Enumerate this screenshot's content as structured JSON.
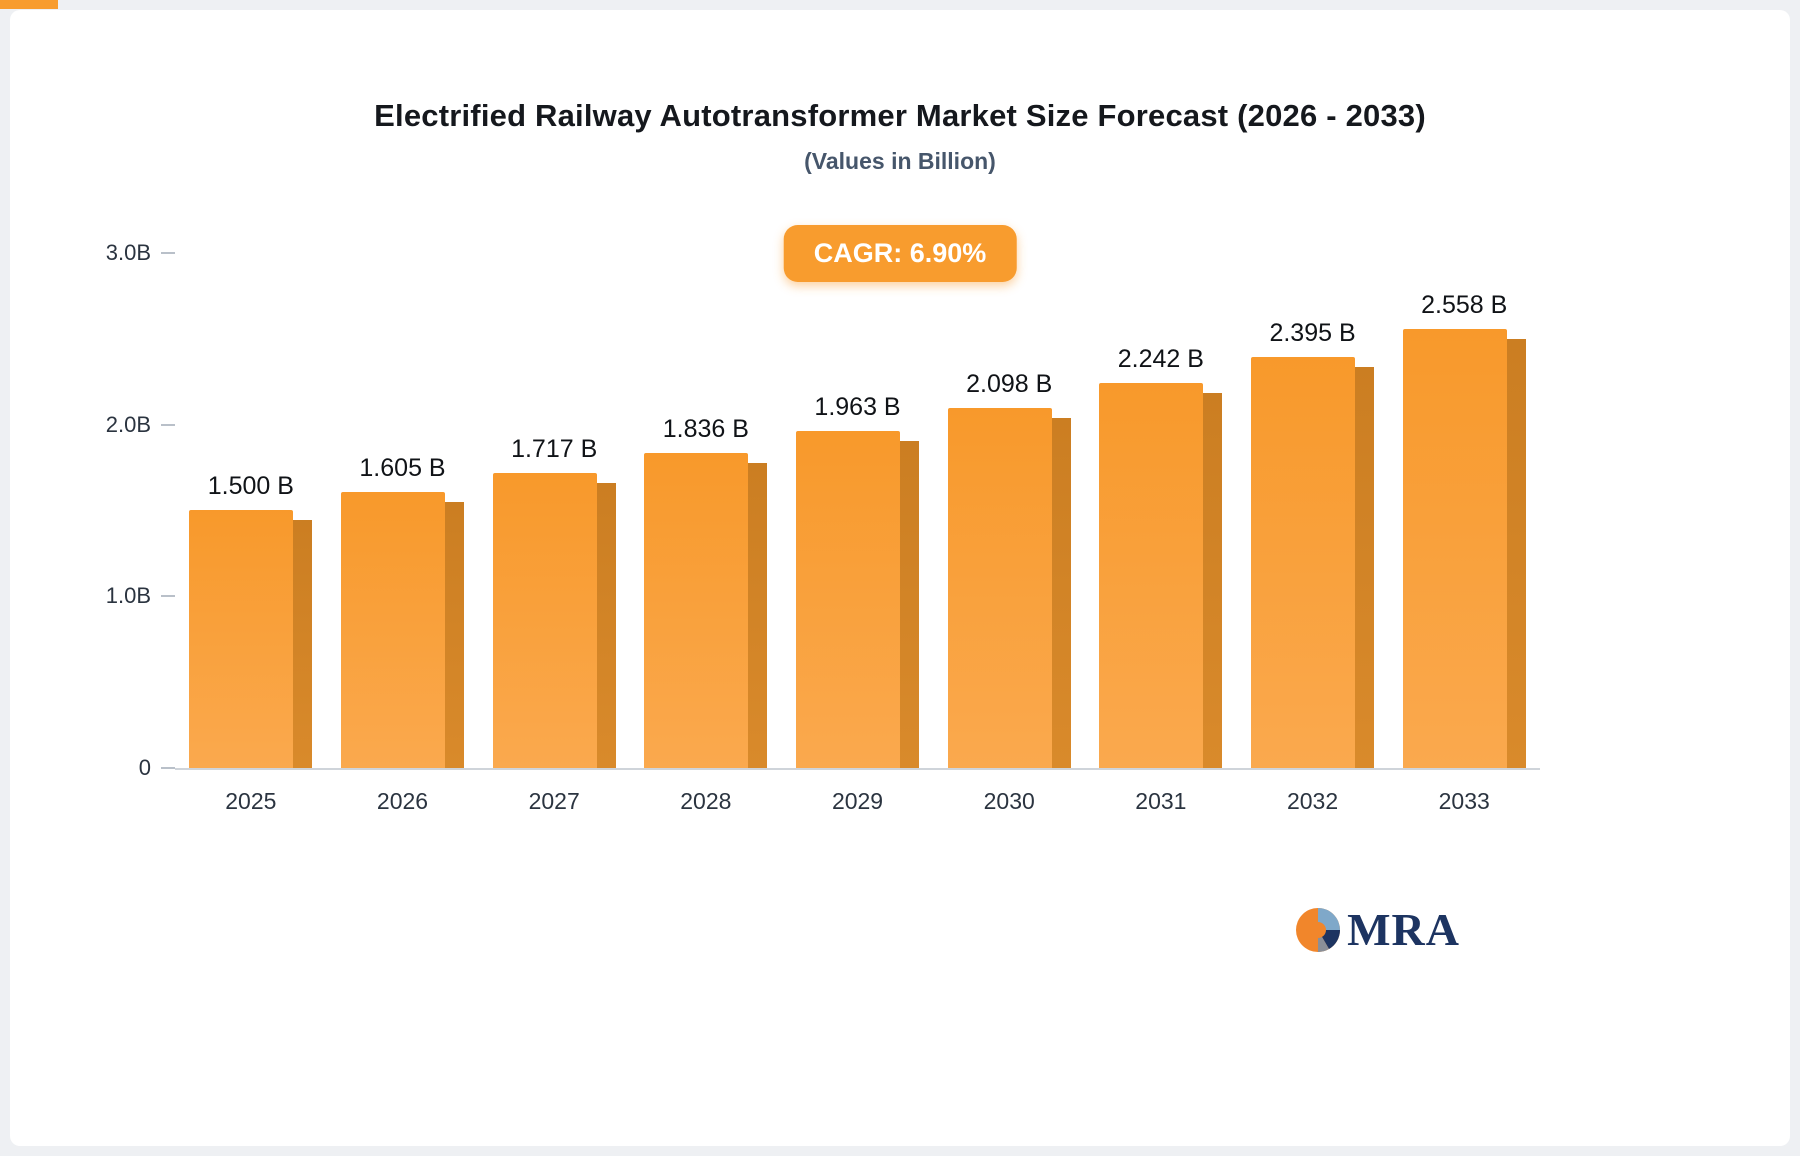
{
  "chart_data": {
    "type": "bar",
    "title": "Electrified Railway Autotransformer Market Size Forecast (2026 - 2033)",
    "subtitle": "(Values in Billion)",
    "badge": "CAGR: 6.90%",
    "categories": [
      "2025",
      "2026",
      "2027",
      "2028",
      "2029",
      "2030",
      "2031",
      "2032",
      "2033"
    ],
    "values": [
      1.5,
      1.605,
      1.717,
      1.836,
      1.963,
      2.098,
      2.242,
      2.395,
      2.558
    ],
    "value_labels": [
      "1.500 B",
      "1.605 B",
      "1.717 B",
      "1.836 B",
      "1.963 B",
      "2.098 B",
      "2.242 B",
      "2.395 B",
      "2.558 B"
    ],
    "ylim": [
      0,
      3.0
    ],
    "ytick_values": [
      3.0,
      2.0,
      1.0,
      0
    ],
    "ytick_labels": [
      "3.0B",
      "2.0B",
      "1.0B",
      "0"
    ],
    "bar_color": "#F89C2E",
    "bar_side_color": "#CB7E22",
    "legend": "none",
    "grid": "off"
  },
  "logo": {
    "text": "MRA",
    "icon_colors": {
      "orange": "#F1862B",
      "light_blue": "#7FA8C9",
      "navy": "#1d3461",
      "gray": "#8a8f98"
    }
  }
}
